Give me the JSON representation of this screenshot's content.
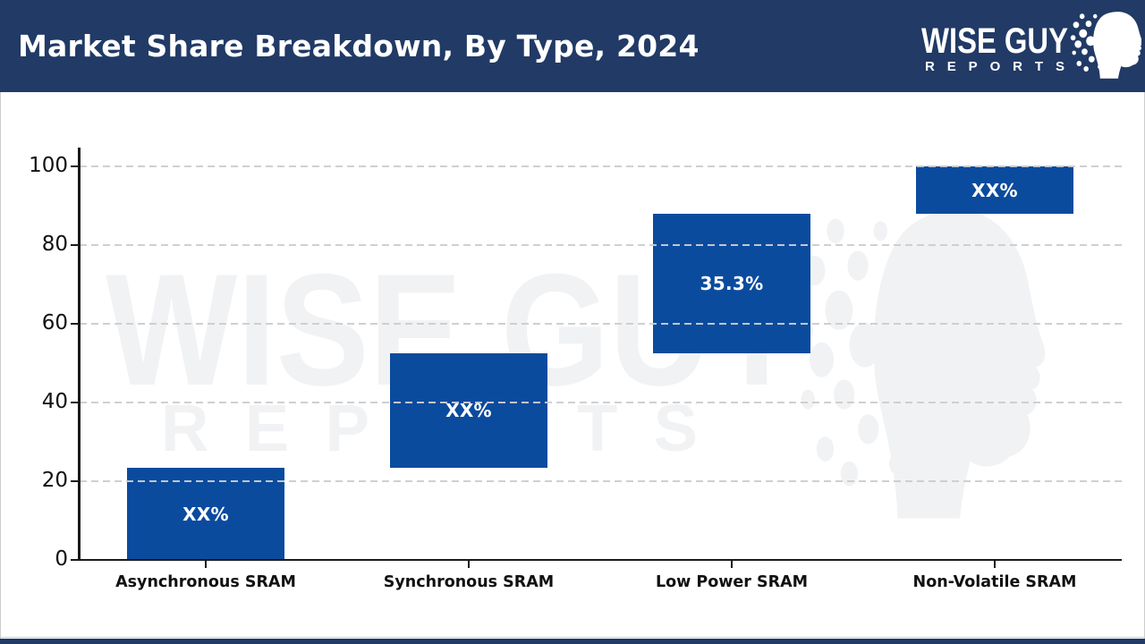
{
  "header": {
    "title": "Market Share Breakdown, By Type, 2024"
  },
  "logo": {
    "line1": "WISE GUY",
    "line2": "REPORTS"
  },
  "watermark": {
    "line1": "WISE GUY",
    "line2": "REPORTS"
  },
  "colors": {
    "header_navy": "#213a66",
    "footer_navy": "#213a66",
    "bar_blue": "#0b4b9e",
    "bar_label_white": "#ffffff",
    "gridline_gray": "#cdcdcd",
    "axis_black": "#1a1a1a",
    "watermark_gray": "#f1f2f4",
    "frame_border_gray": "#cccccc"
  },
  "chart_data": {
    "type": "bar",
    "subtype": "floating-segment-waterfall",
    "title": "Market Share Breakdown, By Type, 2024",
    "categories": [
      "Asynchronous SRAM",
      "Synchronous SRAM",
      "Low Power SRAM",
      "Non-Volatile SRAM"
    ],
    "segments": [
      {
        "category": "Asynchronous SRAM",
        "start": 0,
        "end": 23.3,
        "label": "XX%"
      },
      {
        "category": "Synchronous SRAM",
        "start": 23.3,
        "end": 52.6,
        "label": "XX%"
      },
      {
        "category": "Low Power SRAM",
        "start": 52.6,
        "end": 87.9,
        "label": "35.3%",
        "value": 35.3
      },
      {
        "category": "Non-Volatile SRAM",
        "start": 87.9,
        "end": 100,
        "label": "XX%"
      }
    ],
    "xlabel": "",
    "ylabel": "",
    "ylim": [
      0,
      100
    ],
    "yticks": [
      0,
      20,
      40,
      60,
      80,
      100
    ],
    "grid": "dashed horizontal gridlines, drawn over bars",
    "legend": "none"
  }
}
